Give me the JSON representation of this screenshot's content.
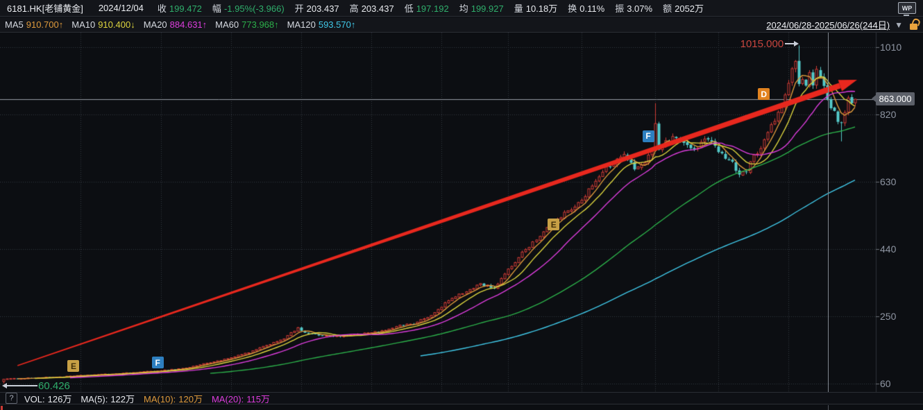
{
  "header": {
    "symbol": "6181.HK[老铺黄金]",
    "date": "2024/12/04",
    "fields": [
      {
        "label": "收",
        "value": "199.472",
        "color": "green"
      },
      {
        "label": "幅",
        "value": "-1.95%(-3.966)",
        "color": "green"
      },
      {
        "label": "开",
        "value": "203.437",
        "color": "white"
      },
      {
        "label": "高",
        "value": "203.437",
        "color": "white"
      },
      {
        "label": "低",
        "value": "197.192",
        "color": "green"
      },
      {
        "label": "均",
        "value": "199.927",
        "color": "green"
      },
      {
        "label": "量",
        "value": "10.18万",
        "color": "white"
      },
      {
        "label": "换",
        "value": "0.11%",
        "color": "white"
      },
      {
        "label": "振",
        "value": "3.07%",
        "color": "white"
      },
      {
        "label": "额",
        "value": "2052万",
        "color": "white"
      }
    ]
  },
  "icons": {
    "wp_label": "WP",
    "dropdown_glyph": "▼",
    "help_glyph": "?"
  },
  "ma_bar": {
    "items": [
      {
        "label": "MA5",
        "value": "910.700",
        "arrow": "↑",
        "color": "orange"
      },
      {
        "label": "MA10",
        "value": "910.400",
        "arrow": "↓",
        "color": "yellow"
      },
      {
        "label": "MA20",
        "value": "884.631",
        "arrow": "↑",
        "color": "magenta"
      },
      {
        "label": "MA60",
        "value": "773.968",
        "arrow": "↑",
        "color": "mgreen"
      },
      {
        "label": "MA120",
        "value": "593.570",
        "arrow": "↑",
        "color": "cyan"
      }
    ],
    "range_label": "2024/06/28-2025/06/26(244日)"
  },
  "annotations": {
    "high_label": "1015.000",
    "low_label": "60.426"
  },
  "price_marker": {
    "last_price_label": "863.000"
  },
  "volume_bar": {
    "items": [
      {
        "label": "VOL:",
        "value": "126万",
        "color": "white"
      },
      {
        "label": "MA(5):",
        "value": "122万",
        "color": "white"
      },
      {
        "label": "MA(10):",
        "value": "120万",
        "color": "orange"
      },
      {
        "label": "MA(20):",
        "value": "115万",
        "color": "magenta"
      }
    ]
  },
  "chart_data": {
    "type": "candlestick",
    "title": "6181.HK 老铺黄金 daily K-line",
    "x_range": [
      "2024/06/28",
      "2025/06/26"
    ],
    "trading_days": 244,
    "y_ticks": [
      1010,
      820,
      630,
      440,
      250,
      60
    ],
    "ylim": [
      50,
      1060
    ],
    "grid": "dotted",
    "legend_position": "top",
    "up_color": "#d13c36",
    "down_color": "#55caca",
    "background": "#0c0e12",
    "first_open": 66,
    "last_close": 863.0,
    "period_high": 1015.0,
    "period_low": 60.426,
    "close_anchors": [
      [
        0,
        73
      ],
      [
        8,
        76
      ],
      [
        16,
        79
      ],
      [
        24,
        84
      ],
      [
        32,
        88
      ],
      [
        44,
        96
      ],
      [
        52,
        104
      ],
      [
        58,
        118
      ],
      [
        64,
        130
      ],
      [
        70,
        148
      ],
      [
        75,
        168
      ],
      [
        80,
        188
      ],
      [
        84,
        216
      ],
      [
        86,
        205
      ],
      [
        90,
        196
      ],
      [
        96,
        193
      ],
      [
        102,
        200
      ],
      [
        108,
        208
      ],
      [
        112,
        222
      ],
      [
        117,
        230
      ],
      [
        122,
        252
      ],
      [
        127,
        295
      ],
      [
        131,
        315
      ],
      [
        136,
        342
      ],
      [
        140,
        330
      ],
      [
        144,
        380
      ],
      [
        148,
        430
      ],
      [
        152,
        468
      ],
      [
        157,
        520
      ],
      [
        161,
        545
      ],
      [
        165,
        582
      ],
      [
        169,
        630
      ],
      [
        172,
        668
      ],
      [
        175,
        692
      ],
      [
        177,
        702
      ],
      [
        180,
        668
      ],
      [
        183,
        688
      ],
      [
        185,
        725
      ],
      [
        186,
        788
      ],
      [
        187,
        722
      ],
      [
        189,
        740
      ],
      [
        191,
        758
      ],
      [
        194,
        738
      ],
      [
        197,
        722
      ],
      [
        200,
        748
      ],
      [
        202,
        738
      ],
      [
        205,
        712
      ],
      [
        208,
        682
      ],
      [
        210,
        652
      ],
      [
        212,
        664
      ],
      [
        214,
        700
      ],
      [
        216,
        730
      ],
      [
        218,
        772
      ],
      [
        220,
        800
      ],
      [
        222,
        845
      ],
      [
        224,
        902
      ],
      [
        225,
        940
      ],
      [
        226,
        975
      ],
      [
        227,
        908
      ],
      [
        228,
        920
      ],
      [
        229,
        900
      ],
      [
        230,
        938
      ],
      [
        231,
        908
      ],
      [
        232,
        942
      ],
      [
        233,
        925
      ],
      [
        234,
        892
      ],
      [
        235,
        862
      ],
      [
        236,
        845
      ],
      [
        237,
        822
      ],
      [
        238,
        802
      ],
      [
        239,
        792
      ],
      [
        240,
        818
      ],
      [
        241,
        858
      ],
      [
        242,
        846
      ],
      [
        243,
        863
      ]
    ],
    "wick_overrides": {
      "0": {
        "low": 60.426
      },
      "186": {
        "high": 852
      },
      "227": {
        "high": 1015
      },
      "239": {
        "low": 744
      }
    },
    "moving_averages": [
      {
        "period": 5,
        "color": "#de9a3c"
      },
      {
        "period": 10,
        "color": "#dcd43e"
      },
      {
        "period": 20,
        "color": "#dd3ddd"
      },
      {
        "period": 60,
        "color": "#2cb04a"
      },
      {
        "period": 120,
        "color": "#40c8e8"
      }
    ],
    "month_grid_days": [
      22,
      45,
      65,
      85,
      105,
      125,
      144,
      165,
      186,
      204,
      224
    ],
    "divider_day": 235.3,
    "trend_arrow": {
      "color": "#e8281e",
      "from": {
        "day": 4,
        "price": 111
      },
      "to": {
        "day": 243.6,
        "price": 918
      }
    },
    "markers": [
      {
        "letter": "E",
        "style": "gold",
        "day": 20,
        "price": 109
      },
      {
        "letter": "F",
        "style": "blue",
        "day": 44,
        "price": 119
      },
      {
        "letter": "E",
        "style": "gold",
        "day": 157,
        "price": 509
      },
      {
        "letter": "F",
        "style": "blue",
        "day": 184,
        "price": 759
      },
      {
        "letter": "D",
        "style": "orangebg",
        "day": 217,
        "price": 877
      }
    ]
  }
}
